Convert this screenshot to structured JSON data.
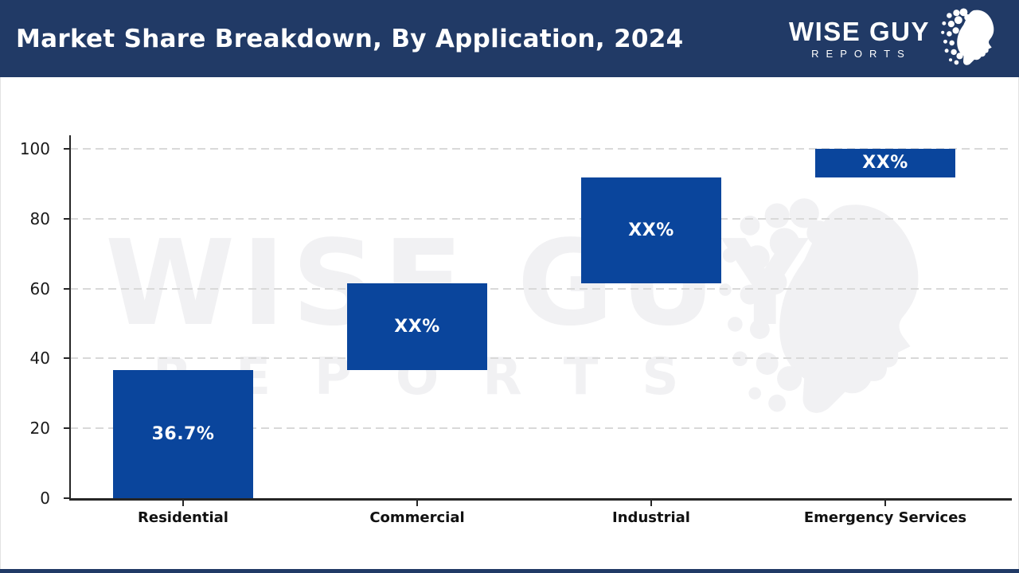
{
  "header": {
    "title": "Market Share Breakdown, By Application, 2024",
    "logo": {
      "line1": "WISE GUY",
      "line2": "REPORTS"
    }
  },
  "watermark": {
    "line1": "WISE GUY",
    "line2": "REPORTS"
  },
  "colors": {
    "header_bg": "#213a66",
    "footer_bg": "#213a66",
    "bar": "#0a459c",
    "axis": "#262626",
    "grid": "#d9d9d9",
    "tick_text": "#1a1a1a",
    "category_text": "#111111",
    "bar_label_text": "#ffffff",
    "watermark": "#f1f1f3"
  },
  "chart_data": {
    "type": "bar",
    "variant": "waterfall",
    "title": "Market Share Breakdown, By Application, 2024",
    "categories": [
      "Residential",
      "Commercial",
      "Industrial",
      "Emergency Services"
    ],
    "segments": [
      {
        "category": "Residential",
        "start": 0,
        "end": 36.7,
        "label": "36.7%"
      },
      {
        "category": "Commercial",
        "start": 36.7,
        "end": 61.4,
        "label": "XX%"
      },
      {
        "category": "Industrial",
        "start": 61.4,
        "end": 91.8,
        "label": "XX%"
      },
      {
        "category": "Emergency Services",
        "start": 91.8,
        "end": 100,
        "label": "XX%"
      }
    ],
    "ylim": [
      0,
      100
    ],
    "yticks": [
      0,
      20,
      40,
      60,
      80,
      100
    ],
    "xlabel": "",
    "ylabel": "",
    "grid": "horizontal-dashed",
    "legend": "none",
    "bar_color": "#0a459c"
  }
}
